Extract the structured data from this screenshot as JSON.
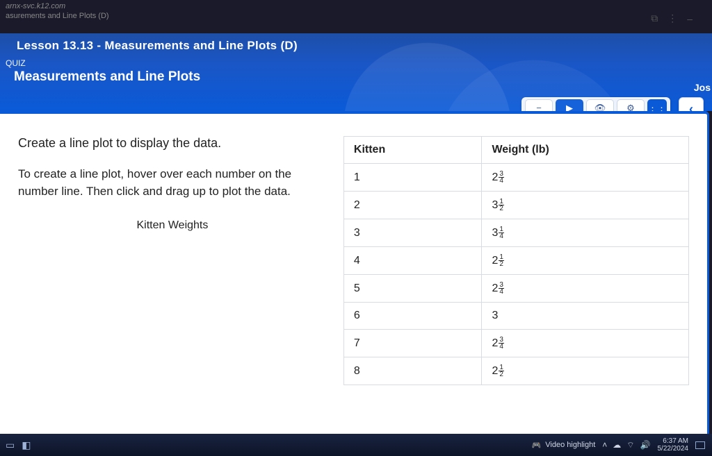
{
  "chrome": {
    "url_hint": "arnx-svc.k12.com",
    "tab_hint": "asurements and Line Plots (D)"
  },
  "header": {
    "lesson_title": "Lesson 13.13 - Measurements and Line Plots (D)",
    "quiz_label": "QUIZ",
    "subtitle": "Measurements and Line Plots",
    "user_partial": "Jos"
  },
  "toolbar": {
    "less": {
      "label": "Less",
      "icon": "−"
    },
    "read": {
      "label": "Read",
      "icon": "▶"
    },
    "focus": {
      "label": "Focus",
      "icon": "👁"
    },
    "settings": {
      "label": "Settings",
      "icon": "⚙"
    },
    "apps_icon": "⋮⋮",
    "back_icon": "‹"
  },
  "content": {
    "instruction_1": "Create a line plot to display the data.",
    "instruction_2": "To create a line plot, hover over each number on the number line. Then click and drag up to plot the data.",
    "chart_title": "Kitten Weights",
    "table": {
      "columns": [
        "Kitten",
        "Weight (lb)"
      ],
      "rows": [
        {
          "id": "1",
          "whole": "2",
          "num": "3",
          "den": "4"
        },
        {
          "id": "2",
          "whole": "3",
          "num": "1",
          "den": "2"
        },
        {
          "id": "3",
          "whole": "3",
          "num": "1",
          "den": "4"
        },
        {
          "id": "4",
          "whole": "2",
          "num": "1",
          "den": "2"
        },
        {
          "id": "5",
          "whole": "2",
          "num": "3",
          "den": "4"
        },
        {
          "id": "6",
          "whole": "3",
          "num": "",
          "den": ""
        },
        {
          "id": "7",
          "whole": "2",
          "num": "3",
          "den": "4"
        },
        {
          "id": "8",
          "whole": "2",
          "num": "1",
          "den": "2"
        }
      ]
    }
  },
  "taskbar": {
    "video_label": "Video highlight",
    "time": "6:37 AM",
    "date": "5/22/2024"
  },
  "colors": {
    "brand_blue": "#0a5ad8",
    "band_top": "#1e4fa8",
    "border_grey": "#d7dbe2"
  }
}
